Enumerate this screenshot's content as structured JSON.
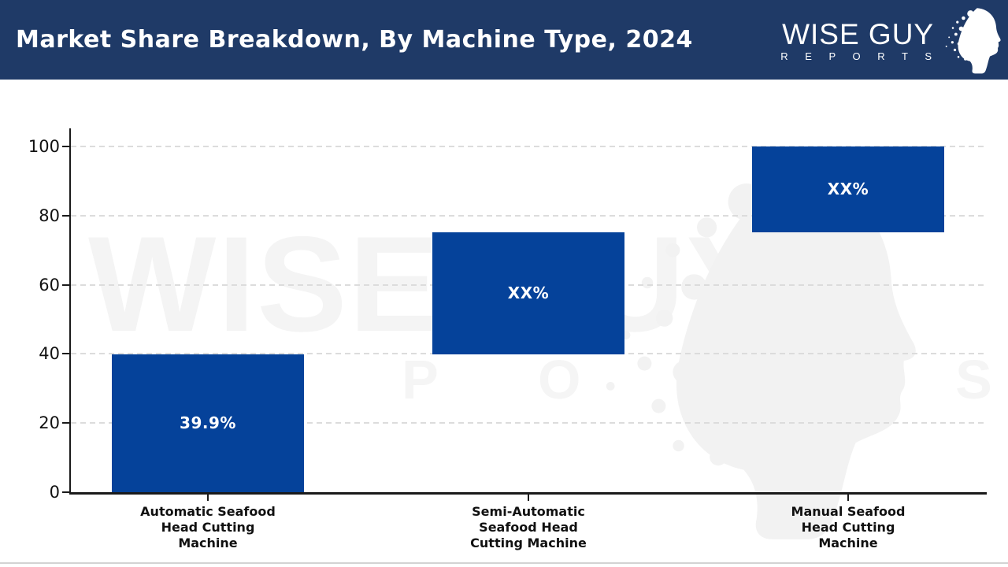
{
  "header": {
    "title": "Market Share Breakdown, By Machine Type, 2024",
    "bg_color": "#1f3a67",
    "logo": {
      "line1": "WISE GUY",
      "line2": "R E P O R T S"
    }
  },
  "watermark": {
    "line1": "WISE GUY",
    "line2": "R E P O R T S"
  },
  "chart_data": {
    "type": "bar",
    "subtype": "waterfall",
    "title": "Market Share Breakdown, By Machine Type, 2024",
    "xlabel": "",
    "ylabel": "",
    "ylim": [
      0,
      105
    ],
    "yticks": [
      0,
      20,
      40,
      60,
      80,
      100
    ],
    "grid": "horizontal-dashed",
    "bar_color": "#05429a",
    "categories": [
      "Automatic Seafood Head Cutting Machine",
      "Semi-Automatic Seafood Head Cutting Machine",
      "Manual Seafood Head Cutting Machine"
    ],
    "category_lines": [
      [
        "Automatic Seafood",
        "Head Cutting",
        "Machine"
      ],
      [
        "Semi-Automatic",
        "Seafood Head",
        "Cutting Machine"
      ],
      [
        "Manual Seafood",
        "Head Cutting",
        "Machine"
      ]
    ],
    "bars": [
      {
        "start": 0,
        "end": 39.9,
        "label": "39.9%"
      },
      {
        "start": 39.9,
        "end": 75.2,
        "label": "XX%"
      },
      {
        "start": 75.2,
        "end": 100,
        "label": "XX%"
      }
    ]
  }
}
